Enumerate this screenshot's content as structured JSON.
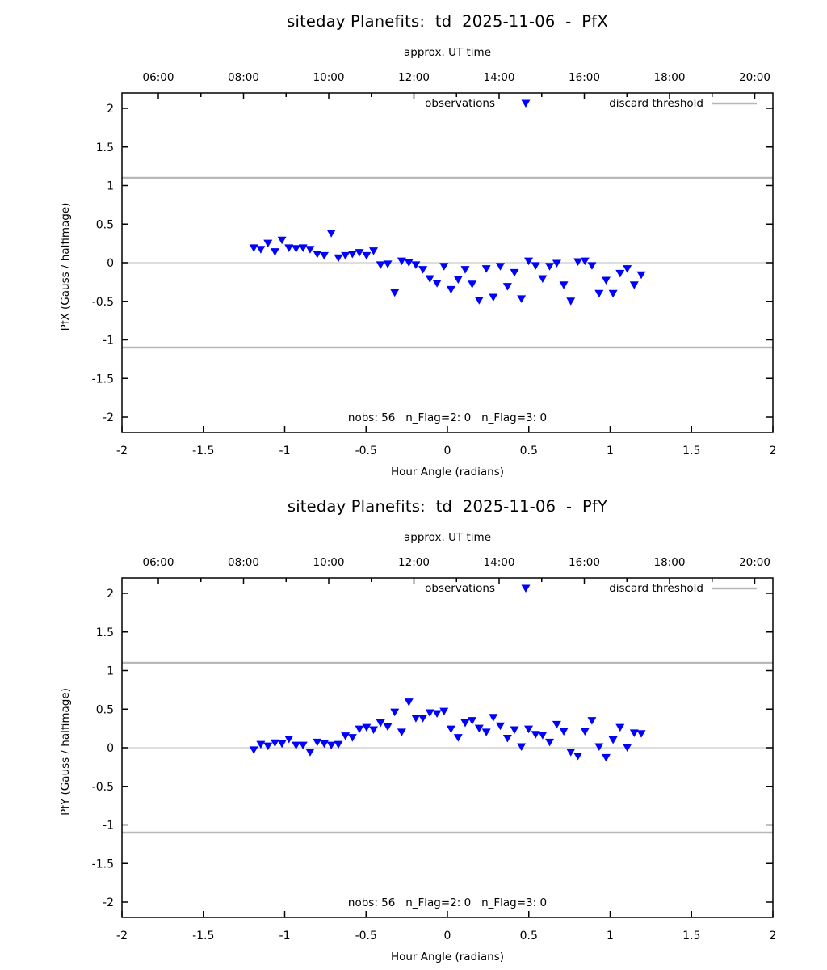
{
  "colors": {
    "marker": "#0000ff",
    "threshold_line": "#b8b8b8",
    "zero_line": "#d4d4d4",
    "frame": "#000000"
  },
  "chart_data": [
    {
      "type": "scatter",
      "title": "siteday Planefits:  td  2025-11-06  -  PfX",
      "x2label": "approx. UT time",
      "xlabel": "Hour Angle (radians)",
      "ylabel": "PfX (Gauss / halfimage)",
      "xlim": [
        -2,
        2
      ],
      "ylim": [
        -2.2,
        2.2
      ],
      "grid": false,
      "legend_position": "top",
      "legend": [
        "observations",
        "discard threshold"
      ],
      "annotation": "nobs: 56   n_Flag=2: 0   n_Flag=3: 0",
      "x_ticks": [
        -2,
        -1.5,
        -1,
        -0.5,
        0,
        0.5,
        1,
        1.5,
        2
      ],
      "y_ticks": [
        2,
        1.5,
        1,
        0.5,
        0,
        -0.5,
        -1,
        -1.5,
        -2
      ],
      "x2_ticks": [
        "06:00",
        "08:00",
        "10:00",
        "12:00",
        "14:00",
        "16:00",
        "18:00",
        "20:00"
      ],
      "thresholds": [
        1.1,
        -1.1
      ],
      "zero_line": true,
      "series": [
        {
          "name": "observations",
          "marker": "triangle-down",
          "color": "#0000ff",
          "x": [
            -1.19,
            -1.147,
            -1.103,
            -1.06,
            -1.017,
            -0.974,
            -0.93,
            -0.887,
            -0.844,
            -0.8,
            -0.757,
            -0.714,
            -0.67,
            -0.627,
            -0.584,
            -0.541,
            -0.497,
            -0.454,
            -0.411,
            -0.367,
            -0.324,
            -0.281,
            -0.237,
            -0.194,
            -0.151,
            -0.108,
            -0.064,
            -0.021,
            0.022,
            0.066,
            0.109,
            0.152,
            0.195,
            0.239,
            0.282,
            0.325,
            0.369,
            0.412,
            0.455,
            0.499,
            0.542,
            0.585,
            0.628,
            0.672,
            0.715,
            0.758,
            0.802,
            0.845,
            0.888,
            0.932,
            0.975,
            1.018,
            1.061,
            1.105,
            1.148,
            1.191
          ],
          "y": [
            0.19,
            0.17,
            0.25,
            0.14,
            0.29,
            0.19,
            0.18,
            0.19,
            0.17,
            0.11,
            0.09,
            0.38,
            0.06,
            0.09,
            0.11,
            0.13,
            0.09,
            0.15,
            -0.03,
            -0.02,
            -0.39,
            0.02,
            0.0,
            -0.03,
            -0.09,
            -0.21,
            -0.27,
            -0.05,
            -0.35,
            -0.22,
            -0.09,
            -0.28,
            -0.49,
            -0.08,
            -0.45,
            -0.05,
            -0.31,
            -0.13,
            -0.47,
            0.02,
            -0.04,
            -0.21,
            -0.05,
            -0.01,
            -0.29,
            -0.5,
            0.01,
            0.02,
            -0.04,
            -0.4,
            -0.23,
            -0.4,
            -0.14,
            -0.08,
            -0.29,
            -0.16
          ]
        }
      ]
    },
    {
      "type": "scatter",
      "title": "siteday Planefits:  td  2025-11-06  -  PfY",
      "x2label": "approx. UT time",
      "xlabel": "Hour Angle (radians)",
      "ylabel": "PfY (Gauss / halfimage)",
      "xlim": [
        -2,
        2
      ],
      "ylim": [
        -2.2,
        2.2
      ],
      "grid": false,
      "legend_position": "top",
      "legend": [
        "observations",
        "discard threshold"
      ],
      "annotation": "nobs: 56   n_Flag=2: 0   n_Flag=3: 0",
      "x_ticks": [
        -2,
        -1.5,
        -1,
        -0.5,
        0,
        0.5,
        1,
        1.5,
        2
      ],
      "y_ticks": [
        2,
        1.5,
        1,
        0.5,
        0,
        -0.5,
        -1,
        -1.5,
        -2
      ],
      "x2_ticks": [
        "06:00",
        "08:00",
        "10:00",
        "12:00",
        "14:00",
        "16:00",
        "18:00",
        "20:00"
      ],
      "thresholds": [
        1.1,
        -1.1
      ],
      "zero_line": true,
      "series": [
        {
          "name": "observations",
          "marker": "triangle-down",
          "color": "#0000ff",
          "x": [
            -1.19,
            -1.147,
            -1.103,
            -1.06,
            -1.017,
            -0.974,
            -0.93,
            -0.887,
            -0.844,
            -0.8,
            -0.757,
            -0.714,
            -0.67,
            -0.627,
            -0.584,
            -0.541,
            -0.497,
            -0.454,
            -0.411,
            -0.367,
            -0.324,
            -0.281,
            -0.237,
            -0.194,
            -0.151,
            -0.108,
            -0.064,
            -0.021,
            0.022,
            0.066,
            0.109,
            0.152,
            0.195,
            0.239,
            0.282,
            0.325,
            0.369,
            0.412,
            0.455,
            0.499,
            0.542,
            0.585,
            0.628,
            0.672,
            0.715,
            0.758,
            0.802,
            0.845,
            0.888,
            0.932,
            0.975,
            1.018,
            1.061,
            1.105,
            1.148,
            1.191
          ],
          "y": [
            -0.03,
            0.04,
            0.02,
            0.06,
            0.05,
            0.11,
            0.03,
            0.03,
            -0.06,
            0.07,
            0.05,
            0.03,
            0.04,
            0.15,
            0.13,
            0.24,
            0.26,
            0.23,
            0.32,
            0.27,
            0.46,
            0.2,
            0.59,
            0.38,
            0.38,
            0.45,
            0.44,
            0.47,
            0.24,
            0.13,
            0.32,
            0.35,
            0.25,
            0.2,
            0.39,
            0.28,
            0.12,
            0.23,
            0.01,
            0.24,
            0.17,
            0.16,
            0.07,
            0.3,
            0.21,
            -0.06,
            -0.11,
            0.21,
            0.35,
            0.01,
            -0.13,
            0.1,
            0.26,
            0.0,
            0.19,
            0.18
          ]
        }
      ]
    }
  ]
}
